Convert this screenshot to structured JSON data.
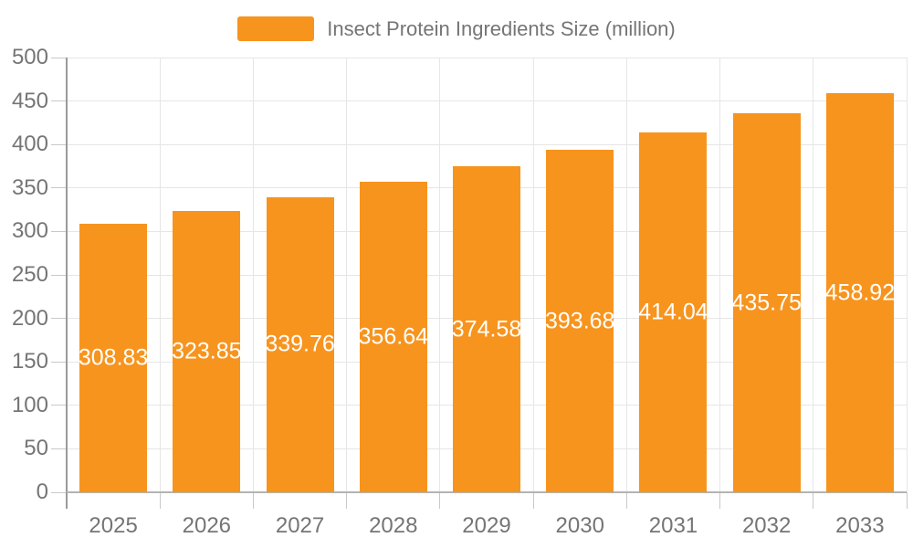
{
  "chart_data": {
    "type": "bar",
    "title": "Insect Protein Ingredients Size (million)",
    "legend": {
      "label": "Insect Protein Ingredients Size (million)",
      "position": "top"
    },
    "categories": [
      "2025",
      "2026",
      "2027",
      "2028",
      "2029",
      "2030",
      "2031",
      "2032",
      "2033"
    ],
    "values": [
      308.83,
      323.85,
      339.76,
      356.64,
      374.58,
      393.68,
      414.04,
      435.75,
      458.92
    ],
    "value_labels": [
      "308.83",
      "323.85",
      "339.76",
      "356.64",
      "374.58",
      "393.68",
      "414.04",
      "435.75",
      "458.92"
    ],
    "xlabel": "",
    "ylabel": "",
    "ylim": [
      0,
      500
    ],
    "yticks": [
      0,
      50,
      100,
      150,
      200,
      250,
      300,
      350,
      400,
      450,
      500
    ],
    "grid": true,
    "value_label_position": "inside-center",
    "colors": {
      "bar": "#f7941e",
      "bar_label": "#ffffff",
      "axis_text": "#757575",
      "legend_text": "#757575",
      "grid_line": "#e6e6e6",
      "axis_line_x": "#b3b3b3",
      "axis_line_y": "#9a9a9a",
      "tick": "#c9c9c9",
      "background": "#ffffff"
    }
  }
}
